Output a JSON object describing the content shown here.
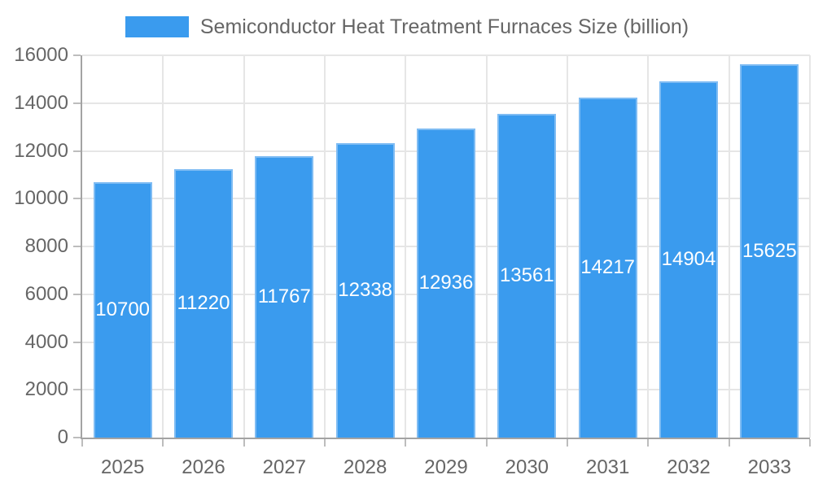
{
  "legend": {
    "label": "Semiconductor Heat Treatment Furnaces Size (billion)"
  },
  "chart_data": {
    "type": "bar",
    "title": "Semiconductor Heat Treatment Furnaces Size (billion)",
    "categories": [
      "2025",
      "2026",
      "2027",
      "2028",
      "2029",
      "2030",
      "2031",
      "2032",
      "2033"
    ],
    "values": [
      10700,
      11220,
      11767,
      12338,
      12936,
      13561,
      14217,
      14904,
      15625
    ],
    "xlabel": "",
    "ylabel": "",
    "ylim": [
      0,
      16000
    ],
    "ytick_step": 2000,
    "grid": true,
    "legend_position": "top",
    "colors": {
      "bar_fill": "#3a9bee",
      "bar_border": "#7fbcf3",
      "gridline": "#e6e6e6",
      "axis_line": "#a3a3a3",
      "tick_mark": "#bdbdbd",
      "axis_text": "#666666",
      "bar_label_text": "#ffffff",
      "background": "#ffffff"
    }
  }
}
